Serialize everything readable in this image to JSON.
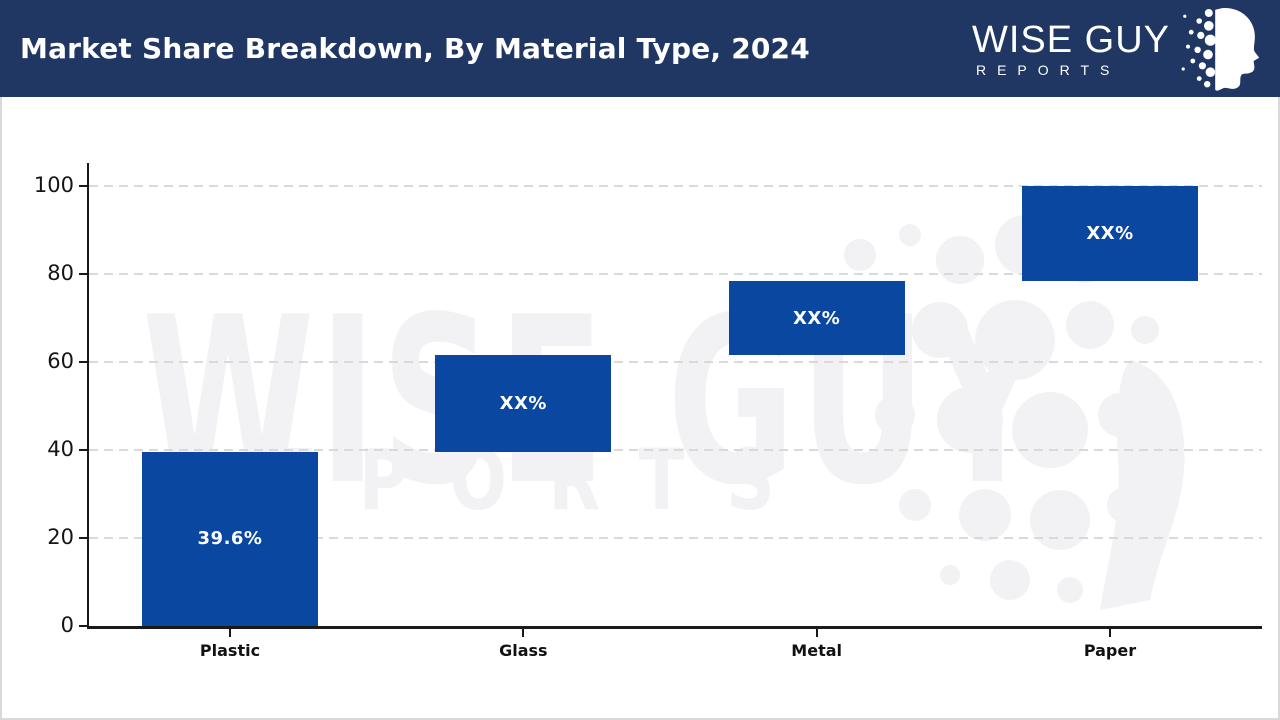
{
  "header": {
    "title": "Market Share Breakdown, By Material Type, 2024",
    "logo": {
      "name_top": "WISE GUY",
      "name_bottom": "REPORTS"
    }
  },
  "watermark": {
    "text_top": "WISE GUY",
    "text_bottom": "REPORTS"
  },
  "chart_data": {
    "type": "bar",
    "variant": "waterfall",
    "title": "Market Share Breakdown, By Material Type, 2024",
    "categories": [
      "Plastic",
      "Glass",
      "Metal",
      "Paper"
    ],
    "segments": [
      {
        "category": "Plastic",
        "start": 0,
        "end": 39.6,
        "label": "39.6%"
      },
      {
        "category": "Glass",
        "start": 39.6,
        "end": 61.5,
        "label": "XX%"
      },
      {
        "category": "Metal",
        "start": 61.5,
        "end": 78.4,
        "label": "XX%"
      },
      {
        "category": "Paper",
        "start": 78.4,
        "end": 100,
        "label": "XX%"
      }
    ],
    "yticks": [
      0,
      20,
      40,
      60,
      80,
      100
    ],
    "ylim": [
      0,
      105
    ],
    "xlabel": "",
    "ylabel": "",
    "grid": "horizontal-dashed",
    "legend": "none"
  },
  "colors": {
    "header_bg": "#203763",
    "bar": "#0a47a0",
    "bar_label": "#ffffff",
    "grid": "#d9d9d9",
    "axis": "#1a1a1a",
    "watermark": "#f2f2f4",
    "page_border": "#d9d9d9"
  }
}
